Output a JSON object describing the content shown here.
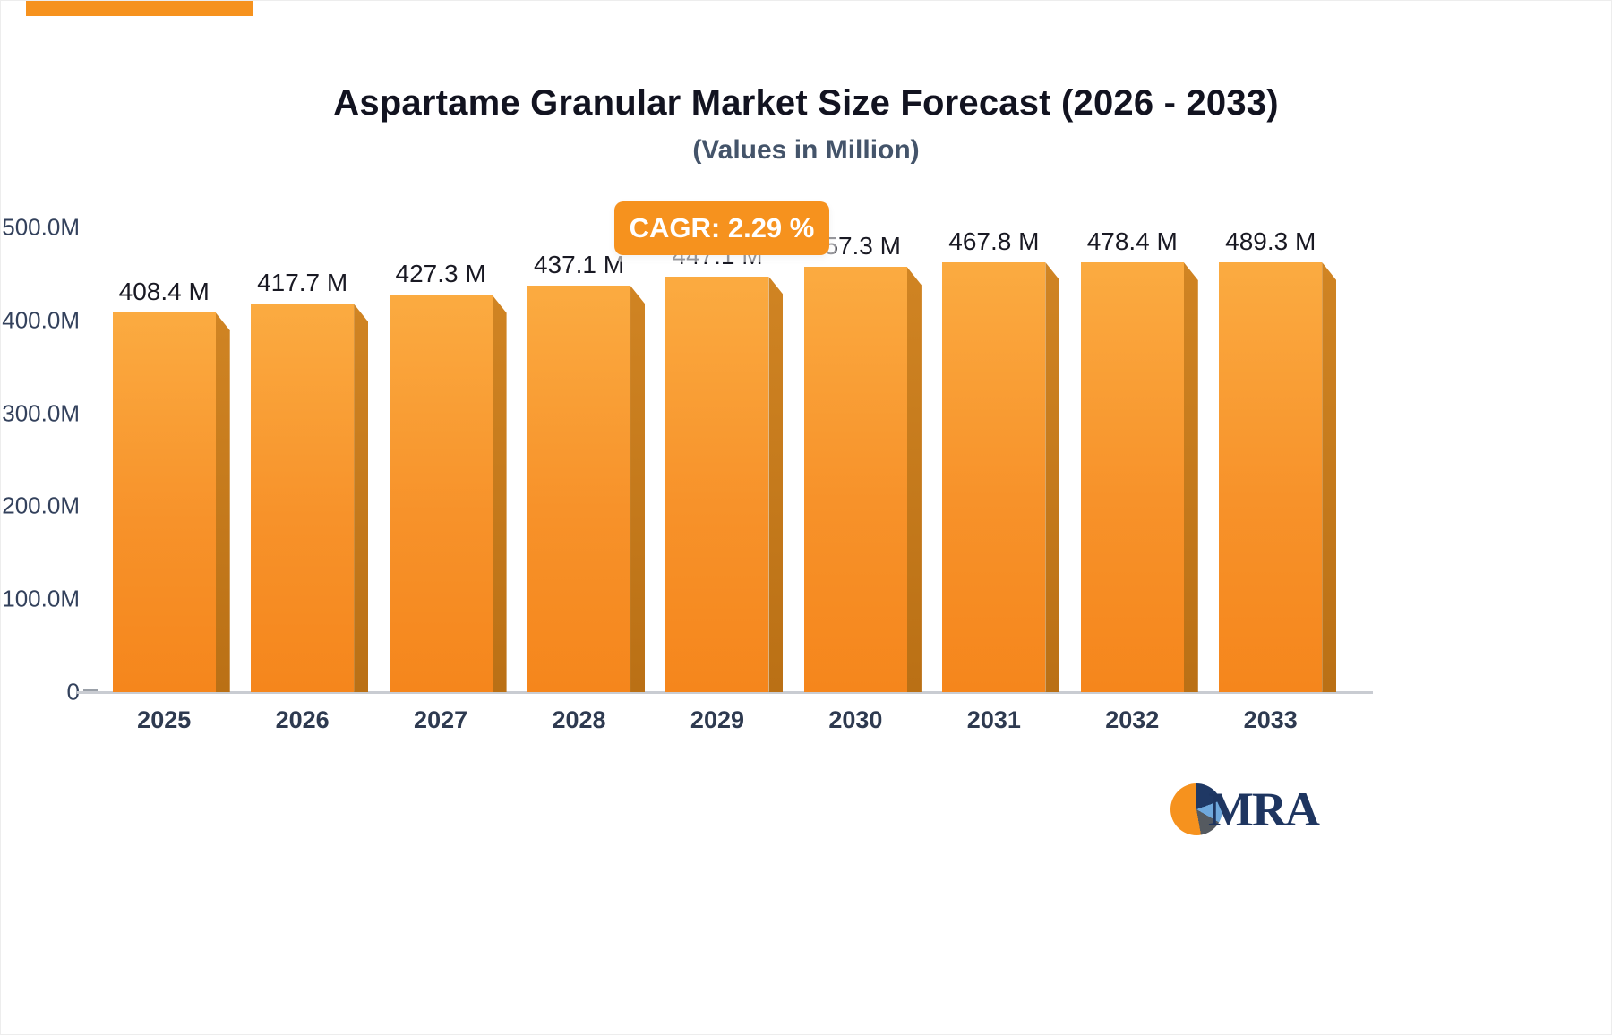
{
  "page": {
    "cagr_label": "CAGR: 2.29 %",
    "logo_text": "MRA"
  },
  "colors": {
    "accent_orange": "#F6921E",
    "bar_face_top": "#FBAB41",
    "bar_face_bottom": "#F5861C",
    "bar_side": "#BA7015",
    "axis_text": "#33415C",
    "title_text": "#121320",
    "subtitle_text": "#44546A",
    "logo_navy": "#1E3560"
  },
  "chart_data": {
    "type": "bar",
    "title": "Aspartame Granular Market Size Forecast (2026 - 2033)",
    "subtitle": "(Values in Million)",
    "categories": [
      "2025",
      "2026",
      "2027",
      "2028",
      "2029",
      "2030",
      "2031",
      "2032",
      "2033"
    ],
    "values": [
      408.4,
      417.7,
      427.3,
      437.1,
      447.1,
      457.3,
      467.8,
      478.4,
      489.3
    ],
    "value_labels": [
      "408.4 M",
      "417.7 M",
      "427.3 M",
      "437.1 M",
      "447.1 M",
      "457.3 M",
      "467.8 M",
      "478.4 M",
      "489.3 M"
    ],
    "unit": "Million",
    "cagr_percent": 2.29,
    "xlabel": "",
    "ylabel": "",
    "ylim": [
      0,
      500
    ],
    "y_ticks": [
      0,
      100,
      200,
      300,
      400,
      500
    ],
    "y_tick_labels": [
      "0",
      "100.0M",
      "200.0M",
      "300.0M",
      "400.0M",
      "500.0M"
    ],
    "grid": false,
    "legend": "none",
    "bar_style": "3d-extruded-orange"
  }
}
